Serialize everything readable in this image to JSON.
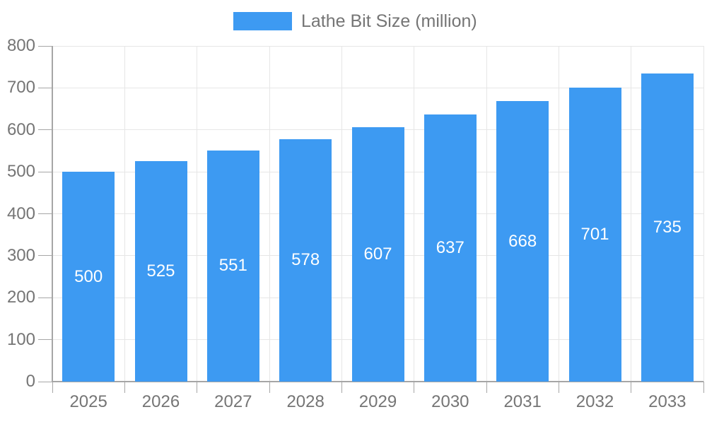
{
  "chart_data": {
    "type": "bar",
    "title": "",
    "legend": "Lathe Bit Size (million)",
    "legend_position": "top",
    "categories": [
      "2025",
      "2026",
      "2027",
      "2028",
      "2029",
      "2030",
      "2031",
      "2032",
      "2033"
    ],
    "values": [
      500,
      525,
      551,
      578,
      607,
      637,
      668,
      701,
      735
    ],
    "xlabel": "",
    "ylabel": "",
    "ylim": [
      0,
      800
    ],
    "ytick_step": 100,
    "grid": true,
    "value_labels_inside_bars": true
  },
  "colors": {
    "bar": "#3D9AF2",
    "value_label": "#FFFFFF",
    "axis_label": "#757575",
    "legend_label": "#757575",
    "gridline": "#E6E6E6",
    "axis_line": "#A6A6A6"
  }
}
